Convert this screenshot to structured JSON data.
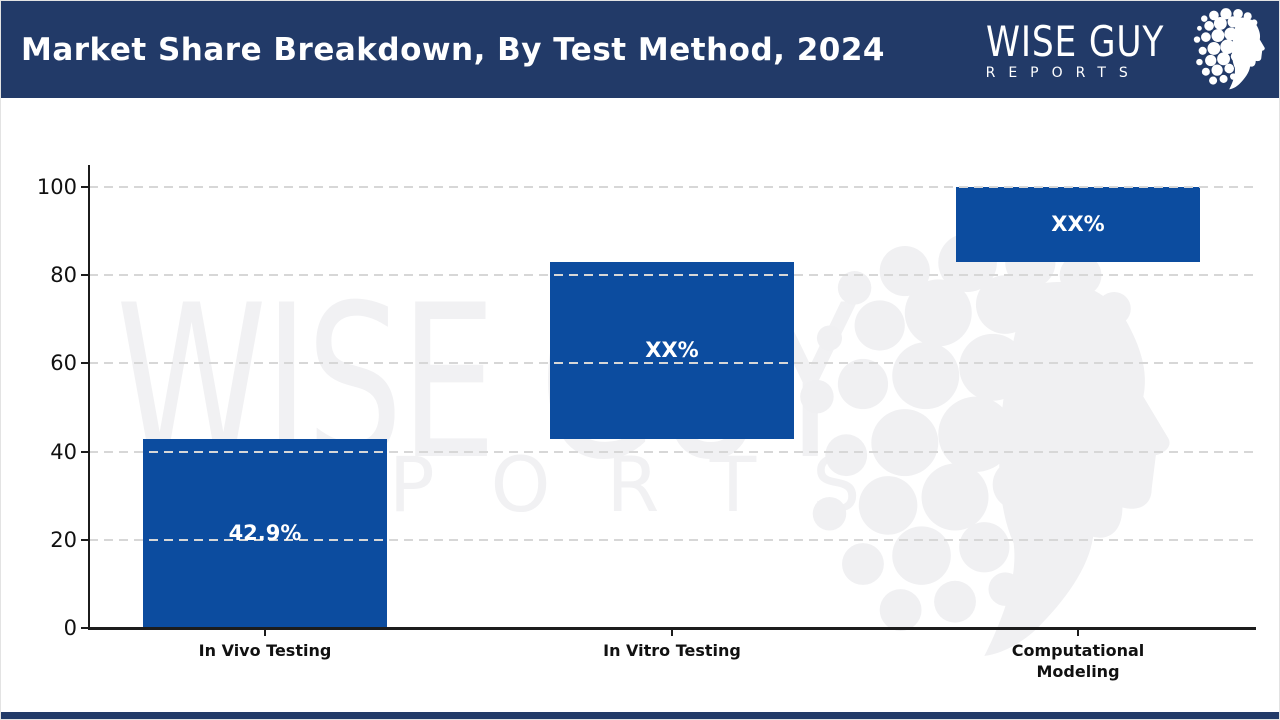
{
  "header": {
    "title": "Market Share Breakdown, By Test Method, 2024",
    "brand": {
      "line1": "WISE GUY",
      "line2": "REPORTS"
    }
  },
  "watermark": {
    "line1": "WISE GUY",
    "line2": "REPORTS"
  },
  "chart_data": {
    "type": "bar",
    "subtype": "waterfall",
    "title": "Market Share Breakdown, By Test Method, 2024",
    "categories": [
      "In Vivo Testing",
      "In Vitro Testing",
      "Computational Modeling"
    ],
    "segments": [
      {
        "category": "In Vivo Testing",
        "start": 0,
        "end": 42.9,
        "label": "42.9%"
      },
      {
        "category": "In Vitro Testing",
        "start": 42.9,
        "end": 83,
        "label": "XX%"
      },
      {
        "category": "Computational Modeling",
        "start": 83,
        "end": 100,
        "label": "XX%"
      }
    ],
    "yticks": [
      0,
      20,
      40,
      60,
      80,
      100
    ],
    "ylim": [
      0,
      100
    ],
    "xlabel": "",
    "ylabel": "",
    "grid": "horizontal-dashed",
    "legend": "none",
    "bar_color": "#0C4C9F"
  },
  "colors": {
    "header_bg": "#223A68",
    "footer_bg": "#223A68",
    "bar": "#0C4C9F",
    "grid": "#D7D7D7",
    "axis": "#1C1C1C",
    "watermark": "#F1F1F3",
    "title_text": "#FFFFFF",
    "bar_label_text": "#FFFFFF"
  }
}
